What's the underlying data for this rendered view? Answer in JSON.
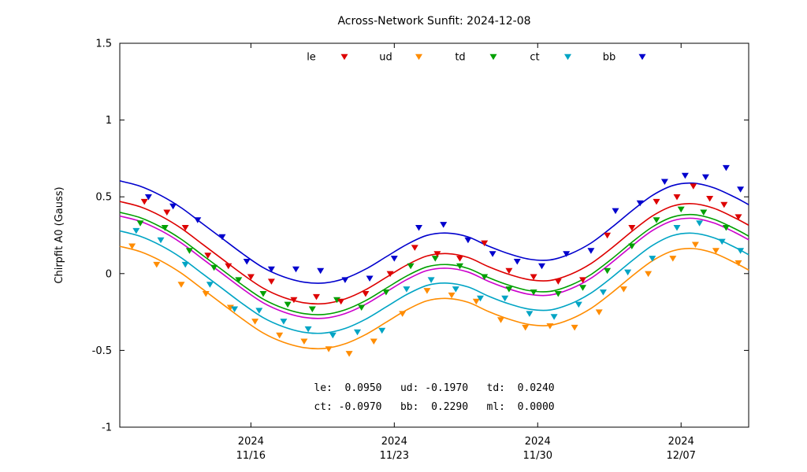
{
  "chart_data": {
    "type": "scatter",
    "title": "Across-Network Sunfit: 2024-12-08",
    "xlabel": "",
    "ylabel": "Chirpfit A0 (Gauss)",
    "ylim": [
      -1,
      1.5
    ],
    "xlim": [
      0,
      30.7
    ],
    "grid": false,
    "legend_position": "top-center-inside",
    "yticks": [
      {
        "v": -1,
        "label": "-1"
      },
      {
        "v": -0.5,
        "label": "-0.5"
      },
      {
        "v": 0,
        "label": "0"
      },
      {
        "v": 0.5,
        "label": "0.5"
      },
      {
        "v": 1,
        "label": "1"
      },
      {
        "v": 1.5,
        "label": "1.5"
      }
    ],
    "xticks": [
      {
        "x": 6.4,
        "label_top": "2024",
        "label_bottom": "11/16"
      },
      {
        "x": 13.4,
        "label_top": "2024",
        "label_bottom": "11/23"
      },
      {
        "x": 20.4,
        "label_top": "2024",
        "label_bottom": "11/30"
      },
      {
        "x": 27.4,
        "label_top": "2024",
        "label_bottom": "12/07"
      }
    ],
    "legend": [
      "le",
      "ud",
      "td",
      "ct",
      "bb"
    ],
    "series_colors": {
      "le": "#dd0000",
      "ud": "#ff8c00",
      "td": "#00a000",
      "ct": "#00a4c4",
      "bb": "#0000cd",
      "ml": "#cc00cc"
    },
    "curve_draw_order": [
      "ud",
      "ct",
      "ml",
      "td",
      "le",
      "bb"
    ],
    "point_draw_order": [
      "ud",
      "ct",
      "td",
      "le",
      "bb"
    ],
    "fit_base_curve": {
      "x": [
        0,
        1,
        2,
        3,
        4,
        5,
        6,
        7,
        8,
        9,
        10,
        11,
        12,
        13,
        14,
        15,
        16,
        17,
        18,
        19,
        20,
        21,
        22,
        23,
        24,
        25,
        26,
        27,
        28,
        29,
        30,
        30.7
      ],
      "y": [
        0.375,
        0.34,
        0.28,
        0.2,
        0.1,
        0.0,
        -0.1,
        -0.19,
        -0.25,
        -0.285,
        -0.29,
        -0.26,
        -0.2,
        -0.12,
        -0.04,
        0.02,
        0.035,
        0.01,
        -0.05,
        -0.1,
        -0.135,
        -0.14,
        -0.1,
        -0.03,
        0.07,
        0.18,
        0.28,
        0.345,
        0.36,
        0.33,
        0.27,
        0.22
      ]
    },
    "fit_offsets": {
      "le": 0.095,
      "ud": -0.197,
      "td": 0.024,
      "ct": -0.097,
      "bb": 0.229,
      "ml": 0.0
    },
    "points": {
      "le": [
        [
          1.2,
          0.47
        ],
        [
          2.3,
          0.4
        ],
        [
          3.2,
          0.3
        ],
        [
          4.3,
          0.12
        ],
        [
          5.3,
          0.05
        ],
        [
          6.4,
          -0.02
        ],
        [
          7.4,
          -0.05
        ],
        [
          8.5,
          -0.17
        ],
        [
          9.6,
          -0.15
        ],
        [
          10.8,
          -0.18
        ],
        [
          12.0,
          -0.13
        ],
        [
          13.2,
          0.0
        ],
        [
          14.4,
          0.17
        ],
        [
          15.5,
          0.13
        ],
        [
          16.6,
          0.1
        ],
        [
          17.8,
          0.2
        ],
        [
          19.0,
          0.02
        ],
        [
          20.2,
          -0.02
        ],
        [
          21.4,
          -0.05
        ],
        [
          22.6,
          -0.04
        ],
        [
          23.8,
          0.25
        ],
        [
          25.0,
          0.3
        ],
        [
          26.2,
          0.47
        ],
        [
          27.2,
          0.5
        ],
        [
          28.0,
          0.57
        ],
        [
          28.8,
          0.49
        ],
        [
          29.5,
          0.45
        ],
        [
          30.2,
          0.37
        ]
      ],
      "ud": [
        [
          0.6,
          0.18
        ],
        [
          1.8,
          0.06
        ],
        [
          3.0,
          -0.07
        ],
        [
          4.2,
          -0.13
        ],
        [
          5.4,
          -0.22
        ],
        [
          6.6,
          -0.31
        ],
        [
          7.8,
          -0.4
        ],
        [
          9.0,
          -0.44
        ],
        [
          10.2,
          -0.49
        ],
        [
          11.2,
          -0.52
        ],
        [
          12.4,
          -0.44
        ],
        [
          13.8,
          -0.26
        ],
        [
          15.0,
          -0.11
        ],
        [
          16.2,
          -0.14
        ],
        [
          17.4,
          -0.18
        ],
        [
          18.6,
          -0.3
        ],
        [
          19.8,
          -0.35
        ],
        [
          21.0,
          -0.34
        ],
        [
          22.2,
          -0.35
        ],
        [
          23.4,
          -0.25
        ],
        [
          24.6,
          -0.1
        ],
        [
          25.8,
          0.0
        ],
        [
          27.0,
          0.1
        ],
        [
          28.1,
          0.19
        ],
        [
          29.1,
          0.15
        ],
        [
          30.2,
          0.07
        ]
      ],
      "td": [
        [
          1.0,
          0.33
        ],
        [
          2.2,
          0.3
        ],
        [
          3.4,
          0.15
        ],
        [
          4.6,
          0.04
        ],
        [
          5.8,
          -0.04
        ],
        [
          7.0,
          -0.13
        ],
        [
          8.2,
          -0.2
        ],
        [
          9.4,
          -0.23
        ],
        [
          10.6,
          -0.17
        ],
        [
          11.8,
          -0.22
        ],
        [
          13.0,
          -0.12
        ],
        [
          14.2,
          0.05
        ],
        [
          15.4,
          0.1
        ],
        [
          16.6,
          0.05
        ],
        [
          17.8,
          -0.02
        ],
        [
          19.0,
          -0.1
        ],
        [
          20.2,
          -0.12
        ],
        [
          21.4,
          -0.13
        ],
        [
          22.6,
          -0.09
        ],
        [
          23.8,
          0.02
        ],
        [
          25.0,
          0.18
        ],
        [
          26.2,
          0.35
        ],
        [
          27.4,
          0.42
        ],
        [
          28.5,
          0.4
        ],
        [
          29.6,
          0.3
        ]
      ],
      "ct": [
        [
          0.8,
          0.28
        ],
        [
          2.0,
          0.22
        ],
        [
          3.2,
          0.06
        ],
        [
          4.4,
          -0.07
        ],
        [
          5.6,
          -0.23
        ],
        [
          6.8,
          -0.24
        ],
        [
          8.0,
          -0.31
        ],
        [
          9.2,
          -0.36
        ],
        [
          10.4,
          -0.4
        ],
        [
          11.6,
          -0.38
        ],
        [
          12.8,
          -0.37
        ],
        [
          14.0,
          -0.1
        ],
        [
          15.2,
          -0.04
        ],
        [
          16.4,
          -0.1
        ],
        [
          17.6,
          -0.16
        ],
        [
          18.8,
          -0.16
        ],
        [
          20.0,
          -0.26
        ],
        [
          21.2,
          -0.28
        ],
        [
          22.4,
          -0.2
        ],
        [
          23.6,
          -0.12
        ],
        [
          24.8,
          0.01
        ],
        [
          26.0,
          0.1
        ],
        [
          27.2,
          0.3
        ],
        [
          28.3,
          0.33
        ],
        [
          29.4,
          0.21
        ],
        [
          30.3,
          0.15
        ]
      ],
      "bb": [
        [
          1.4,
          0.5
        ],
        [
          2.6,
          0.44
        ],
        [
          3.8,
          0.35
        ],
        [
          5.0,
          0.24
        ],
        [
          6.2,
          0.08
        ],
        [
          7.4,
          0.03
        ],
        [
          8.6,
          0.03
        ],
        [
          9.8,
          0.02
        ],
        [
          11.0,
          -0.04
        ],
        [
          12.2,
          -0.03
        ],
        [
          13.4,
          0.1
        ],
        [
          14.6,
          0.3
        ],
        [
          15.8,
          0.32
        ],
        [
          17.0,
          0.22
        ],
        [
          18.2,
          0.13
        ],
        [
          19.4,
          0.08
        ],
        [
          20.6,
          0.05
        ],
        [
          21.8,
          0.13
        ],
        [
          23.0,
          0.15
        ],
        [
          24.2,
          0.41
        ],
        [
          25.4,
          0.46
        ],
        [
          26.6,
          0.6
        ],
        [
          27.6,
          0.64
        ],
        [
          28.6,
          0.63
        ],
        [
          29.6,
          0.69
        ],
        [
          30.3,
          0.55
        ]
      ]
    },
    "coefficients": {
      "le": "0.0950",
      "ud": "-0.1970",
      "td": "0.0240",
      "ct": "-0.0970",
      "bb": "0.2290",
      "ml": "0.0000"
    },
    "coefficients_text": {
      "line1": "le:  0.0950   ud: -0.1970   td:  0.0240",
      "line2": "ct: -0.0970   bb:  0.2290   ml:  0.0000"
    }
  }
}
